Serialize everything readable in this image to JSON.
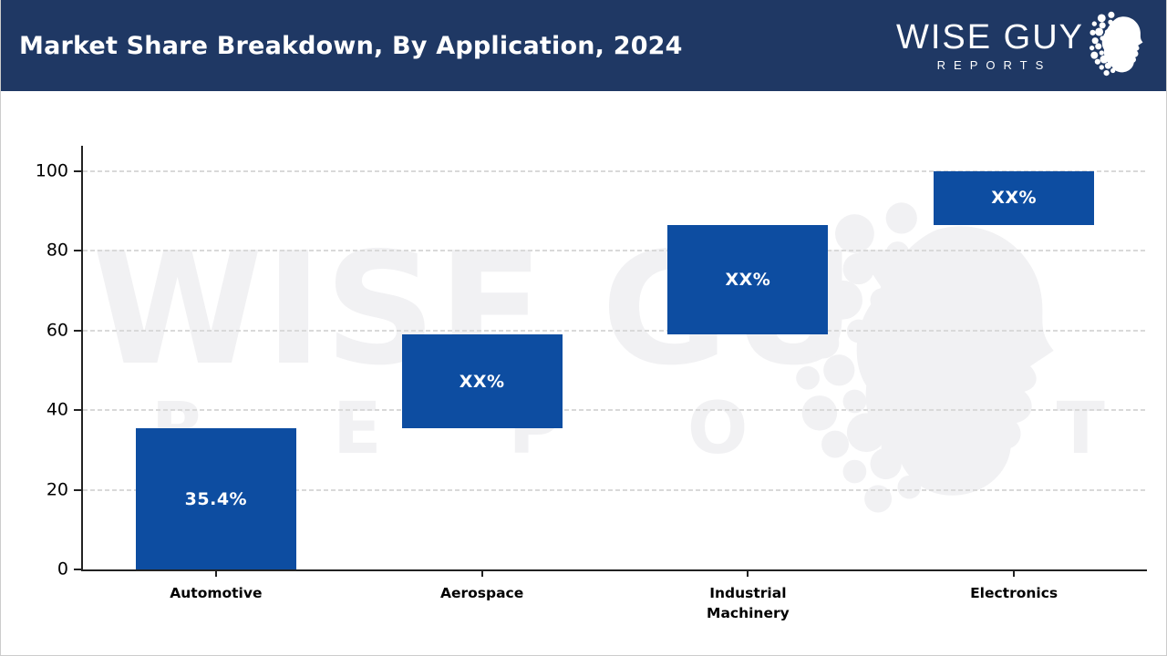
{
  "header": {
    "title": "Market Share Breakdown, By Application, 2024",
    "logo": {
      "line1": "WISE GUY",
      "line2": "REPORTS"
    }
  },
  "watermark": {
    "line1": "WISE GUY",
    "line2": "R E P O R T S"
  },
  "colors": {
    "header_bg": "#1F3864",
    "bar": "#0D4DA1",
    "bar_label": "#FFFFFF",
    "grid": "#D9D9D9",
    "axis": "#222222",
    "watermark": "#F1F1F3"
  },
  "chart_data": {
    "type": "bar",
    "subtype": "waterfall",
    "title": "Market Share Breakdown, By Application, 2024",
    "categories": [
      "Automotive",
      "Aerospace",
      "Industrial Machinery",
      "Electronics"
    ],
    "bars": [
      {
        "category": "Automotive",
        "start": 0,
        "end": 35.4,
        "label": "35.4%"
      },
      {
        "category": "Aerospace",
        "start": 35.4,
        "end": 59.0,
        "label": "XX%"
      },
      {
        "category": "Industrial Machinery",
        "start": 59.0,
        "end": 86.4,
        "label": "XX%"
      },
      {
        "category": "Electronics",
        "start": 86.4,
        "end": 100,
        "label": "XX%"
      }
    ],
    "yticks": [
      0,
      20,
      40,
      60,
      80,
      100
    ],
    "ylim": [
      0,
      106.3
    ],
    "xlabel": "",
    "ylabel": "",
    "grid": "dashed-horizontal",
    "legend": false
  }
}
